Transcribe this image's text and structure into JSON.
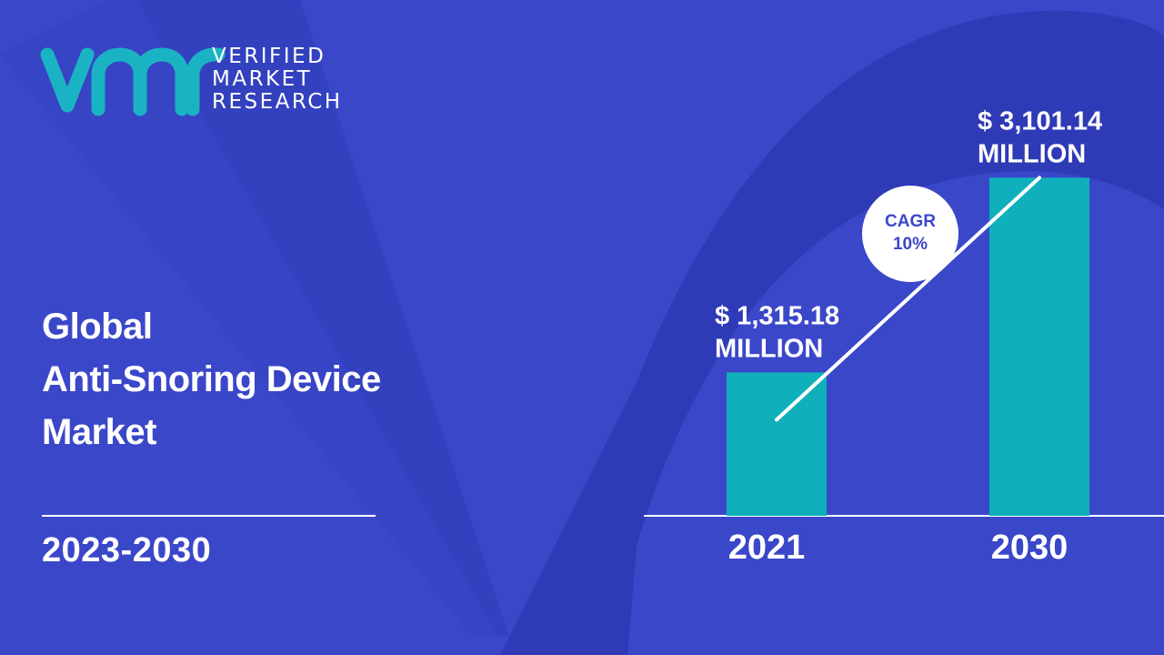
{
  "brand": {
    "name_lines": [
      "VERIFIED",
      "MARKET",
      "RESEARCH"
    ],
    "logo_mark": "vmr",
    "colors": {
      "teal": "#1ab3c4",
      "background": "#3b47c9",
      "shape_dark": "#2d37b0"
    }
  },
  "title_lines": [
    "Global",
    "Anti-Snoring Device",
    "Market"
  ],
  "period": "2023-2030",
  "chart_data": {
    "type": "bar",
    "categories": [
      "2021",
      "2030"
    ],
    "values": [
      1315.18,
      3101.14
    ],
    "value_labels": [
      "$ 1,315.18\nMILLION",
      "$ 3,101.14\nMILLION"
    ],
    "bar_color": "#0fb0bb",
    "cagr": {
      "label": "CAGR",
      "value": "10%"
    },
    "ylim": [
      0,
      3700
    ]
  }
}
